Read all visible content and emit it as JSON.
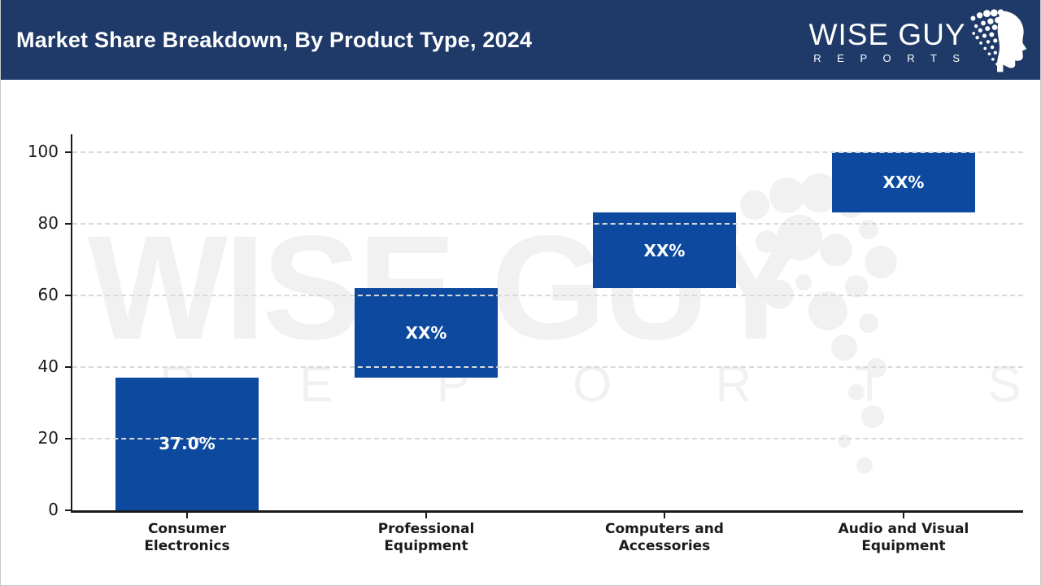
{
  "header": {
    "title": "Market Share Breakdown, By Product Type, 2024",
    "logo": {
      "line1": "WISE GUY",
      "line2": "R E P O R T S"
    }
  },
  "watermark": {
    "line1": "WISE GUY",
    "line2": "R E P O R T S"
  },
  "colors": {
    "header_bg": "#1f3a68",
    "bar": "#0d4a9f",
    "axis": "#1a1a1a",
    "tick_text": "#1a1a1a",
    "grid": "#d9d9d9",
    "bar_label": "#ffffff",
    "watermark": "#f1f1f1"
  },
  "chart_data": {
    "type": "bar",
    "subtype": "waterfall",
    "title": "Market Share Breakdown, By Product Type, 2024",
    "categories": [
      "Consumer Electronics",
      "Professional Equipment",
      "Computers and Accessories",
      "Audio and Visual Equipment"
    ],
    "category_lines": [
      [
        "Consumer",
        "Electronics"
      ],
      [
        "Professional",
        "Equipment"
      ],
      [
        "Computers and",
        "Accessories"
      ],
      [
        "Audio and Visual",
        "Equipment"
      ]
    ],
    "bars": [
      {
        "category": "Consumer Electronics",
        "start": 0,
        "end": 37,
        "value": 37,
        "label": "37.0%"
      },
      {
        "category": "Professional Equipment",
        "start": 37,
        "end": 62,
        "value": 25,
        "label": "XX%"
      },
      {
        "category": "Computers and Accessories",
        "start": 62,
        "end": 83,
        "value": 21,
        "label": "XX%"
      },
      {
        "category": "Audio and Visual Equipment",
        "start": 83,
        "end": 100,
        "value": 17,
        "label": "XX%"
      }
    ],
    "yticks": [
      0,
      20,
      40,
      60,
      80,
      100
    ],
    "ylim": [
      0,
      105
    ],
    "xlabel": "",
    "ylabel": "",
    "grid": "horizontal-dashed",
    "legend": "none"
  }
}
